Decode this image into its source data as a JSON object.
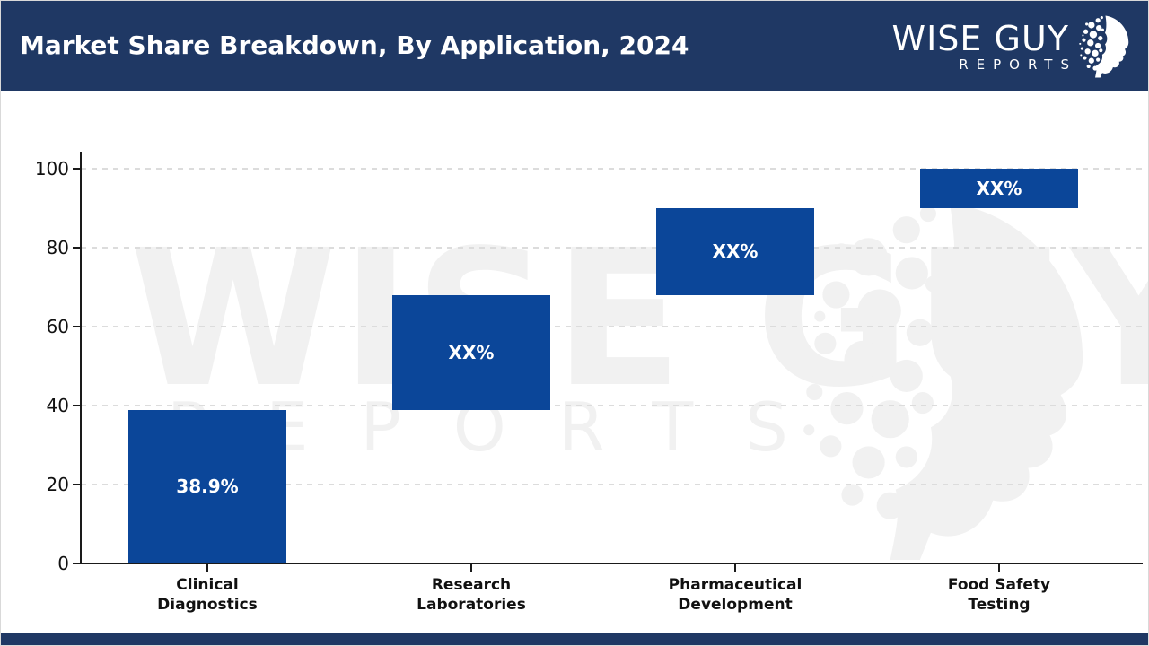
{
  "header": {
    "title": "Market Share Breakdown, By Application, 2024",
    "logo": {
      "line1": "WISE GUY",
      "line2": "REPORTS"
    }
  },
  "watermark": {
    "line1": "WISE GUY",
    "line2": "REPORTS"
  },
  "chart_data": {
    "type": "bar",
    "variant": "waterfall",
    "title": "Market Share Breakdown, By Application, 2024",
    "categories": [
      [
        "Clinical",
        "Diagnostics"
      ],
      [
        "Research",
        "Laboratories"
      ],
      [
        "Pharmaceutical",
        "Development"
      ],
      [
        "Food Safety",
        "Testing"
      ]
    ],
    "bars": [
      {
        "category": "Clinical Diagnostics",
        "start": 0,
        "end": 38.9,
        "label": "38.9%"
      },
      {
        "category": "Research Laboratories",
        "start": 38.9,
        "end": 68,
        "label": "XX%"
      },
      {
        "category": "Pharmaceutical Development",
        "start": 68,
        "end": 90,
        "label": "XX%"
      },
      {
        "category": "Food Safety Testing",
        "start": 90,
        "end": 100,
        "label": "XX%"
      }
    ],
    "ylim": [
      0,
      100
    ],
    "yticks": [
      0,
      20,
      40,
      60,
      80,
      100
    ],
    "grid": "horizontal-dashed",
    "legend": "none",
    "colors": {
      "bar": "#0b4699",
      "bar_label": "#ffffff",
      "header_bg": "#1f3864",
      "footer_bg": "#1f3864",
      "grid": "#dcdcdc",
      "axis": "#1a1a1a",
      "watermark": "#f1f1f1"
    }
  }
}
